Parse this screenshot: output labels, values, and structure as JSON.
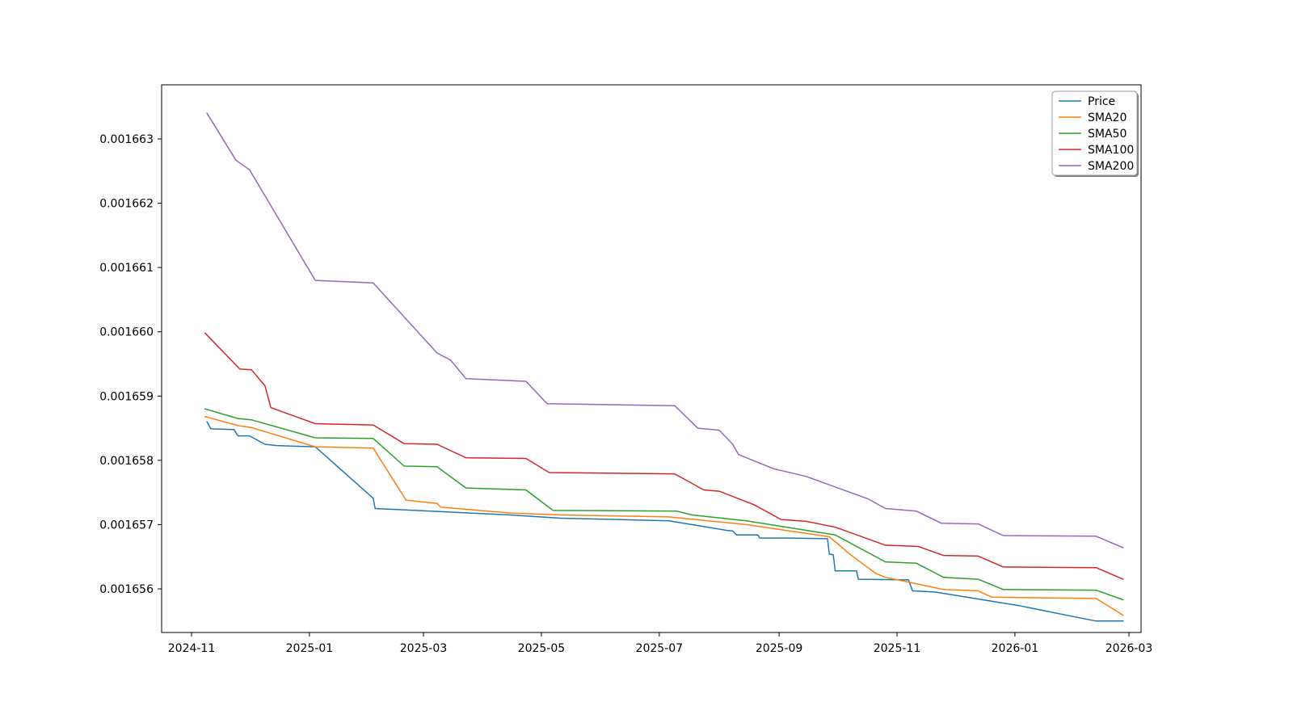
{
  "figure": {
    "background": "#ffffff",
    "plot_background": "#ffffff",
    "spine_color": "#000000",
    "tick_color": "#000000"
  },
  "chart_data": {
    "type": "line",
    "title": "",
    "subtitle": "",
    "xlabel": "",
    "ylabel": "",
    "grid": false,
    "xlim": [
      "2024-10-16",
      "2026-03-09"
    ],
    "ylim": [
      0.00165532,
      0.00166384
    ],
    "x_axis": {
      "ticks": [
        {
          "label": "2024-11",
          "date": "2024-11-01"
        },
        {
          "label": "2025-01",
          "date": "2025-01-01"
        },
        {
          "label": "2025-03",
          "date": "2025-03-01"
        },
        {
          "label": "2025-05",
          "date": "2025-05-01"
        },
        {
          "label": "2025-07",
          "date": "2025-07-01"
        },
        {
          "label": "2025-09",
          "date": "2025-09-01"
        },
        {
          "label": "2025-11",
          "date": "2025-11-01"
        },
        {
          "label": "2026-01",
          "date": "2026-01-01"
        },
        {
          "label": "2026-03",
          "date": "2026-03-01"
        }
      ]
    },
    "y_axis": {
      "ticks": [
        {
          "label": "0.001663",
          "value": 0.001663
        },
        {
          "label": "0.001662",
          "value": 0.001662
        },
        {
          "label": "0.001661",
          "value": 0.001661
        },
        {
          "label": "0.001660",
          "value": 0.00166
        },
        {
          "label": "0.001659",
          "value": 0.001659
        },
        {
          "label": "0.001658",
          "value": 0.001658
        },
        {
          "label": "0.001657",
          "value": 0.001657
        },
        {
          "label": "0.001656",
          "value": 0.001656
        }
      ]
    },
    "legend": {
      "position": "upper right",
      "entries": [
        "Price",
        "SMA20",
        "SMA50",
        "SMA100",
        "SMA200"
      ]
    },
    "series": [
      {
        "name": "Price",
        "color": "#1f77b4",
        "points": [
          [
            "2024-11-09",
            0.0016586
          ],
          [
            "2024-11-11",
            0.00165849
          ],
          [
            "2024-11-23",
            0.00165848
          ],
          [
            "2024-11-25",
            0.00165838
          ],
          [
            "2024-12-01",
            0.00165838
          ],
          [
            "2024-12-09",
            0.00165825
          ],
          [
            "2024-12-15",
            0.00165823
          ],
          [
            "2025-01-04",
            0.00165821
          ],
          [
            "2025-02-03",
            0.00165741
          ],
          [
            "2025-02-04",
            0.00165725
          ],
          [
            "2025-02-25",
            0.00165722
          ],
          [
            "2025-04-15",
            0.00165715
          ],
          [
            "2025-05-11",
            0.0016571
          ],
          [
            "2025-07-06",
            0.00165706
          ],
          [
            "2025-08-05",
            0.00165691
          ],
          [
            "2025-08-08",
            0.0016569
          ],
          [
            "2025-08-10",
            0.00165684
          ],
          [
            "2025-08-21",
            0.00165684
          ],
          [
            "2025-08-22",
            0.00165679
          ],
          [
            "2025-09-07",
            0.00165679
          ],
          [
            "2025-09-26",
            0.00165678
          ],
          [
            "2025-09-27",
            0.00165654
          ],
          [
            "2025-09-29",
            0.00165653
          ],
          [
            "2025-09-30",
            0.00165628
          ],
          [
            "2025-10-11",
            0.00165628
          ],
          [
            "2025-10-12",
            0.00165615
          ],
          [
            "2025-11-07",
            0.00165614
          ],
          [
            "2025-11-09",
            0.00165597
          ],
          [
            "2025-11-21",
            0.00165595
          ],
          [
            "2026-01-03",
            0.00165574
          ],
          [
            "2026-01-31",
            0.00165557
          ],
          [
            "2026-02-12",
            0.0016555
          ],
          [
            "2026-02-26",
            0.0016555
          ]
        ]
      },
      {
        "name": "SMA20",
        "color": "#ff7f0e",
        "points": [
          [
            "2024-11-08",
            0.00165868
          ],
          [
            "2024-11-25",
            0.00165854
          ],
          [
            "2024-12-02",
            0.00165851
          ],
          [
            "2025-01-04",
            0.00165821
          ],
          [
            "2025-02-03",
            0.00165819
          ],
          [
            "2025-02-20",
            0.00165738
          ],
          [
            "2025-03-08",
            0.00165733
          ],
          [
            "2025-03-10",
            0.00165727
          ],
          [
            "2025-04-15",
            0.00165718
          ],
          [
            "2025-05-11",
            0.00165715
          ],
          [
            "2025-07-06",
            0.00165712
          ],
          [
            "2025-08-15",
            0.001657
          ],
          [
            "2025-09-27",
            0.00165681
          ],
          [
            "2025-10-08",
            0.00165653
          ],
          [
            "2025-10-21",
            0.00165624
          ],
          [
            "2025-10-26",
            0.00165618
          ],
          [
            "2025-11-11",
            0.00165608
          ],
          [
            "2025-11-25",
            0.00165599
          ],
          [
            "2025-12-13",
            0.00165597
          ],
          [
            "2025-12-20",
            0.00165587
          ],
          [
            "2026-02-12",
            0.00165585
          ],
          [
            "2026-02-26",
            0.00165559
          ]
        ]
      },
      {
        "name": "SMA50",
        "color": "#2ca02c",
        "points": [
          [
            "2024-11-08",
            0.0016588
          ],
          [
            "2024-11-25",
            0.00165865
          ],
          [
            "2024-12-02",
            0.00165863
          ],
          [
            "2025-01-04",
            0.00165835
          ],
          [
            "2025-02-03",
            0.00165834
          ],
          [
            "2025-02-19",
            0.00165791
          ],
          [
            "2025-03-08",
            0.0016579
          ],
          [
            "2025-03-23",
            0.00165757
          ],
          [
            "2025-04-23",
            0.00165754
          ],
          [
            "2025-05-07",
            0.00165722
          ],
          [
            "2025-07-10",
            0.00165721
          ],
          [
            "2025-07-18",
            0.00165715
          ],
          [
            "2025-08-15",
            0.00165706
          ],
          [
            "2025-08-23",
            0.00165702
          ],
          [
            "2025-09-30",
            0.00165684
          ],
          [
            "2025-10-26",
            0.00165642
          ],
          [
            "2025-11-11",
            0.0016564
          ],
          [
            "2025-11-25",
            0.00165618
          ],
          [
            "2025-12-13",
            0.00165615
          ],
          [
            "2025-12-26",
            0.00165599
          ],
          [
            "2026-02-12",
            0.00165598
          ],
          [
            "2026-02-26",
            0.00165583
          ]
        ]
      },
      {
        "name": "SMA100",
        "color": "#d62728",
        "points": [
          [
            "2024-11-08",
            0.00165998
          ],
          [
            "2024-11-26",
            0.00165942
          ],
          [
            "2024-12-02",
            0.00165941
          ],
          [
            "2024-12-09",
            0.00165916
          ],
          [
            "2024-12-12",
            0.00165882
          ],
          [
            "2025-01-04",
            0.00165857
          ],
          [
            "2025-02-03",
            0.00165855
          ],
          [
            "2025-02-19",
            0.00165826
          ],
          [
            "2025-03-08",
            0.00165825
          ],
          [
            "2025-03-23",
            0.00165804
          ],
          [
            "2025-04-23",
            0.00165803
          ],
          [
            "2025-05-05",
            0.00165781
          ],
          [
            "2025-07-09",
            0.00165779
          ],
          [
            "2025-07-24",
            0.00165754
          ],
          [
            "2025-08-01",
            0.00165752
          ],
          [
            "2025-08-19",
            0.00165731
          ],
          [
            "2025-09-02",
            0.00165708
          ],
          [
            "2025-09-15",
            0.00165705
          ],
          [
            "2025-09-30",
            0.00165696
          ],
          [
            "2025-10-26",
            0.00165668
          ],
          [
            "2025-11-12",
            0.00165666
          ],
          [
            "2025-11-25",
            0.00165652
          ],
          [
            "2025-12-13",
            0.00165651
          ],
          [
            "2025-12-26",
            0.00165634
          ],
          [
            "2026-02-12",
            0.00165633
          ],
          [
            "2026-02-26",
            0.00165615
          ]
        ]
      },
      {
        "name": "SMA200",
        "color": "#9467bd",
        "points": [
          [
            "2024-11-09",
            0.0016634
          ],
          [
            "2024-11-24",
            0.00166267
          ],
          [
            "2024-12-01",
            0.00166252
          ],
          [
            "2025-01-04",
            0.0016608
          ],
          [
            "2025-02-03",
            0.00166076
          ],
          [
            "2025-03-08",
            0.00165967
          ],
          [
            "2025-03-15",
            0.00165956
          ],
          [
            "2025-03-23",
            0.00165927
          ],
          [
            "2025-04-23",
            0.00165923
          ],
          [
            "2025-05-04",
            0.00165888
          ],
          [
            "2025-07-09",
            0.00165885
          ],
          [
            "2025-07-21",
            0.0016585
          ],
          [
            "2025-08-01",
            0.00165847
          ],
          [
            "2025-08-08",
            0.00165825
          ],
          [
            "2025-08-11",
            0.00165809
          ],
          [
            "2025-08-29",
            0.00165787
          ],
          [
            "2025-09-15",
            0.00165775
          ],
          [
            "2025-10-17",
            0.0016574
          ],
          [
            "2025-10-26",
            0.00165725
          ],
          [
            "2025-11-11",
            0.00165721
          ],
          [
            "2025-11-24",
            0.00165702
          ],
          [
            "2025-12-13",
            0.00165701
          ],
          [
            "2025-12-26",
            0.00165683
          ],
          [
            "2026-02-12",
            0.00165682
          ],
          [
            "2026-02-26",
            0.00165664
          ]
        ]
      }
    ]
  }
}
